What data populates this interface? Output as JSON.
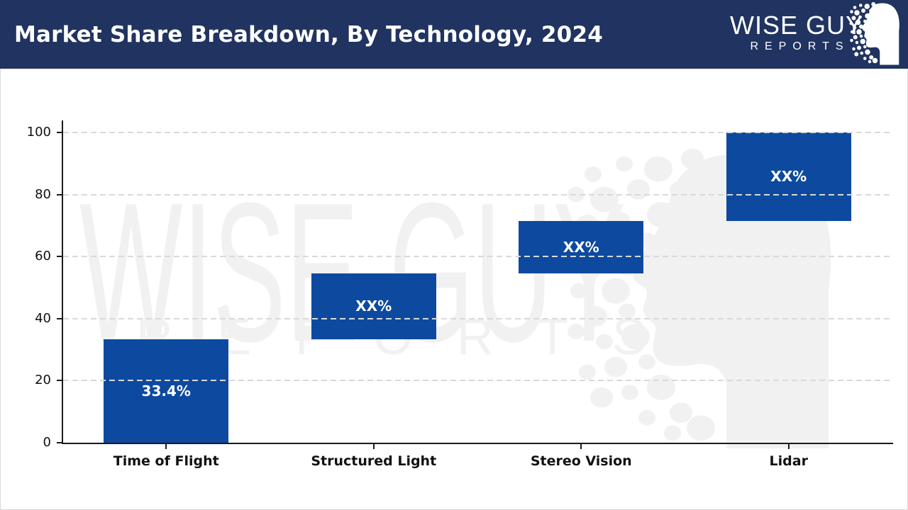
{
  "header": {
    "title": "Market Share Breakdown, By Technology, 2024",
    "bg_color": "#203361",
    "logo": {
      "wordmark": "WISE GUY",
      "subtext": "REPORTS"
    }
  },
  "watermark": {
    "wordmark": "WISE GUY",
    "subtext": "REPORTS",
    "color": "#f1f1f1"
  },
  "chart_data": {
    "type": "bar",
    "subtype": "waterfall",
    "title": "Market Share Breakdown, By Technology, 2024",
    "xlabel": "",
    "ylabel": "",
    "categories": [
      "Time of Flight",
      "Structured Light",
      "Stereo Vision",
      "Lidar"
    ],
    "segments": [
      {
        "category": "Time of Flight",
        "start": 0,
        "end": 33.4,
        "label": "33.4%"
      },
      {
        "category": "Structured Light",
        "start": 33.4,
        "end": 54.5,
        "label": "XX%"
      },
      {
        "category": "Stereo Vision",
        "start": 54.5,
        "end": 71.5,
        "label": "XX%"
      },
      {
        "category": "Lidar",
        "start": 71.5,
        "end": 100,
        "label": "XX%"
      }
    ],
    "yticks": [
      0,
      20,
      40,
      60,
      80,
      100
    ],
    "ylim": [
      0,
      100
    ],
    "grid": "horizontal-dashed",
    "legend": "none",
    "bar_color": "#0d4a9f",
    "grid_color": "#d9d9d9",
    "axis_color": "#1a1a1a",
    "bar_label_color": "#ffffff"
  }
}
